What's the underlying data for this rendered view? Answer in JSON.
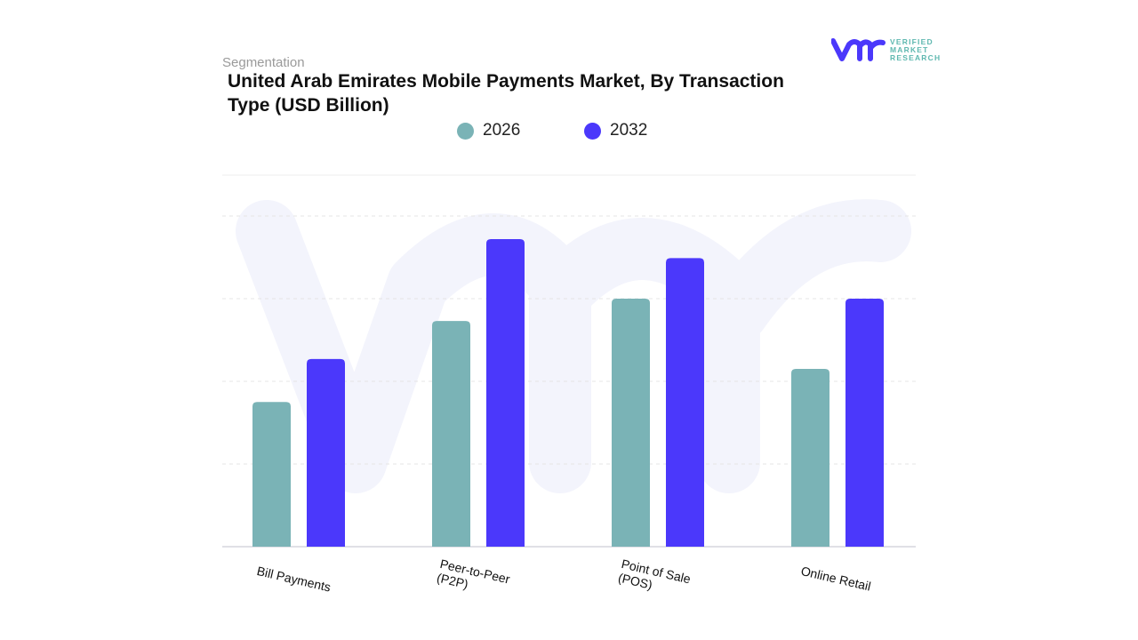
{
  "header": {
    "segment_label": "Segmentation",
    "title": "United Arab Emirates Mobile Payments Market, By Transaction Type (USD Billion)"
  },
  "logo": {
    "line1": "VERIFIED",
    "line2": "MARKET",
    "line3": "RESEARCH",
    "mark": "vmr"
  },
  "chart_data": {
    "type": "bar",
    "title": "United Arab Emirates Mobile Payments Market, By Transaction Type (USD Billion)",
    "categories": [
      "Bill Payments",
      "Peer-to-Peer (P2P)",
      "Point of Sale (POS)",
      "Online Retail"
    ],
    "category_lines": [
      [
        "Bill Payments"
      ],
      [
        "Peer-to-Peer",
        "(P2P)"
      ],
      [
        "Point of Sale",
        "(POS)"
      ],
      [
        "Online Retail"
      ]
    ],
    "series": [
      {
        "name": "2026",
        "color": "#7ab3b6",
        "values": [
          1.75,
          2.73,
          3.0,
          2.15
        ]
      },
      {
        "name": "2032",
        "color": "#4b38fb",
        "values": [
          2.27,
          3.72,
          3.49,
          3.0
        ]
      }
    ],
    "ylim": [
      0,
      4.5
    ],
    "grid": true,
    "y_tick_labels_shown": false,
    "legend_position": "top",
    "xlabel": "",
    "ylabel": ""
  }
}
